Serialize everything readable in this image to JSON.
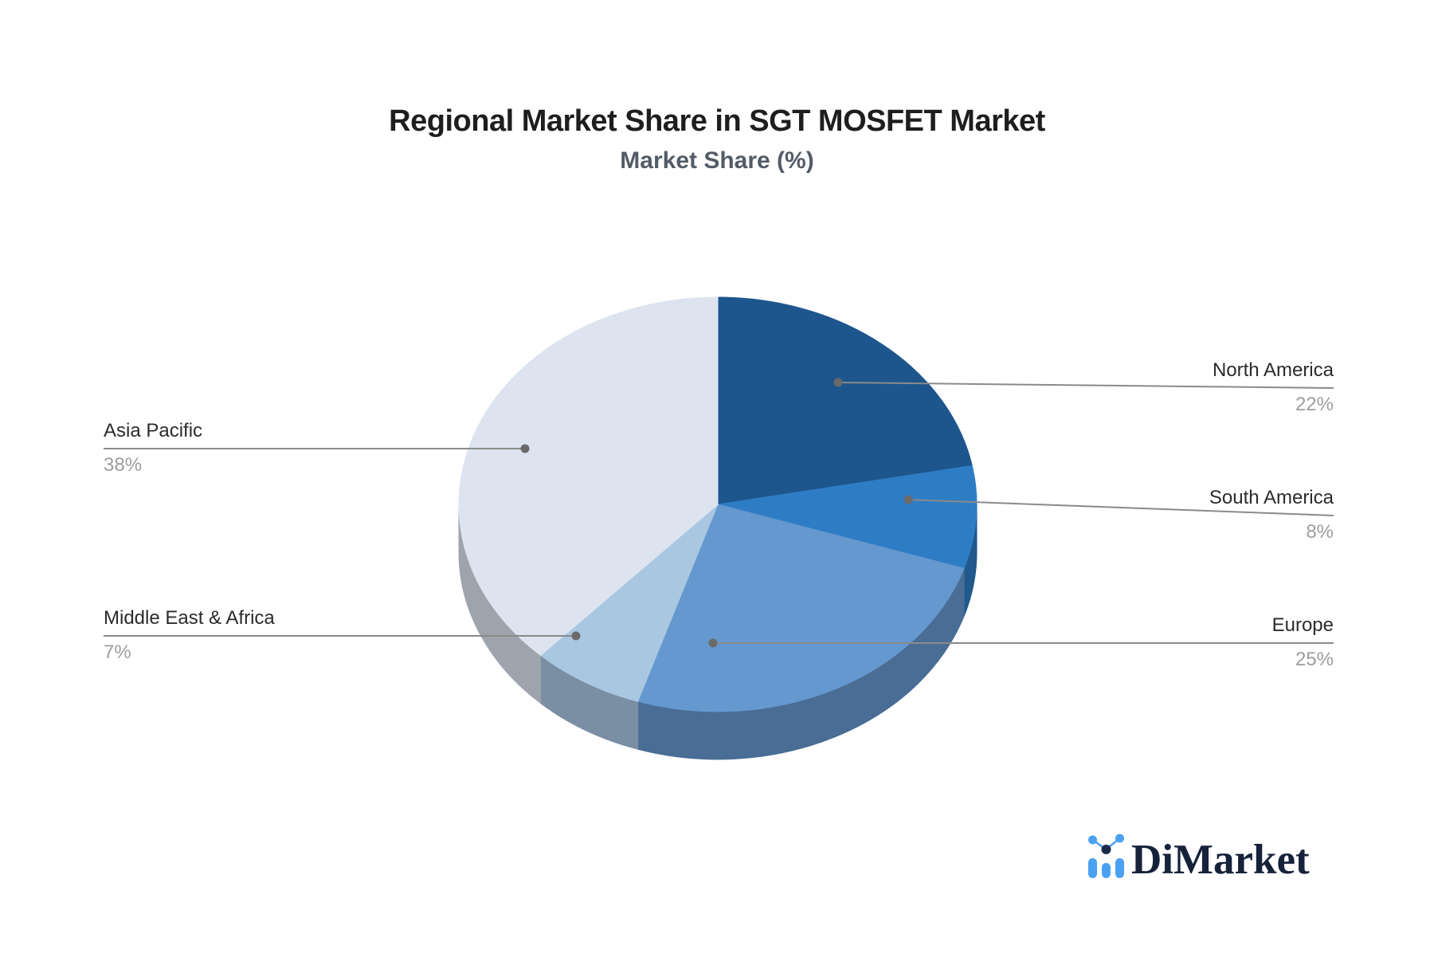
{
  "title": "Regional Market Share in SGT MOSFET Market",
  "subtitle": "Market Share (%)",
  "chart_data": {
    "type": "pie",
    "title": "Regional Market Share in SGT MOSFET Market",
    "subtitle": "Market Share (%)",
    "unit": "%",
    "style": "3d-pie, no legend, callout labels with leader lines",
    "start_angle": "12 o'clock, clockwise",
    "slices": [
      {
        "label": "North America",
        "value": 22,
        "display": "22%",
        "color": "#1d568c",
        "callout_side": "right"
      },
      {
        "label": "South America",
        "value": 8,
        "display": "8%",
        "color": "#2e7cc4",
        "callout_side": "right"
      },
      {
        "label": "Europe",
        "value": 25,
        "display": "25%",
        "color": "#6598cf",
        "callout_side": "right"
      },
      {
        "label": "Middle East & Africa",
        "value": 7,
        "display": "7%",
        "color": "#aac7e2",
        "callout_side": "left"
      },
      {
        "label": "Asia Pacific",
        "value": 38,
        "display": "38%",
        "color": "#dde4ef",
        "callout_side": "left"
      }
    ],
    "leader_line_color": "#8a8a8a",
    "leader_dot_color": "#6a6a6a",
    "label_color": "#2b2b2b",
    "value_color": "#9d9d9d"
  },
  "logo": {
    "brand": "DiMarket",
    "icon": "bar-chart-trend-logo-icon",
    "icon_color": "#4aa1f1",
    "text_color": "#16213a"
  }
}
